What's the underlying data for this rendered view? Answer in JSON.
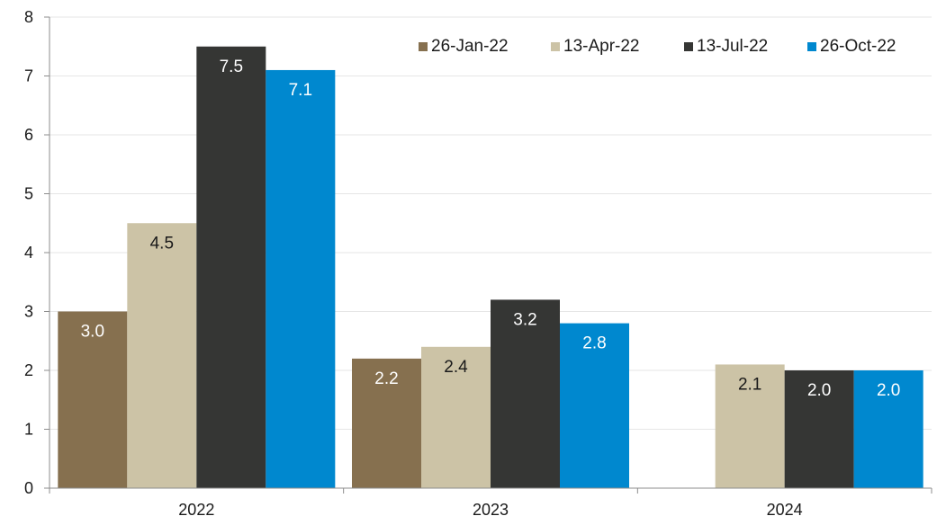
{
  "chart_data": {
    "type": "bar",
    "title": "",
    "xlabel": "",
    "ylabel": "",
    "categories": [
      "2022",
      "2023",
      "2024"
    ],
    "ylim": [
      0,
      8
    ],
    "yticks": [
      0,
      1,
      2,
      3,
      4,
      5,
      6,
      7,
      8
    ],
    "grid": true,
    "legend_position": "top-right",
    "series": [
      {
        "name": "26-Jan-22",
        "color": "#86704f",
        "label_color": "#ffffff",
        "values": [
          3.0,
          2.2,
          null
        ],
        "labels": [
          "3.0",
          "2.2",
          ""
        ]
      },
      {
        "name": "13-Apr-22",
        "color": "#ccc3a6",
        "label_color": "#1a1a1a",
        "values": [
          4.5,
          2.4,
          2.1
        ],
        "labels": [
          "4.5",
          "2.4",
          "2.1"
        ]
      },
      {
        "name": "13-Jul-22",
        "color": "#353634",
        "label_color": "#ffffff",
        "values": [
          7.5,
          3.2,
          2.0
        ],
        "labels": [
          "7.5",
          "3.2",
          "2.0"
        ]
      },
      {
        "name": "26-Oct-22",
        "color": "#0088cf",
        "label_color": "#ffffff",
        "values": [
          7.1,
          2.8,
          2.0
        ],
        "labels": [
          "7.1",
          "2.8",
          "2.0"
        ]
      }
    ]
  }
}
